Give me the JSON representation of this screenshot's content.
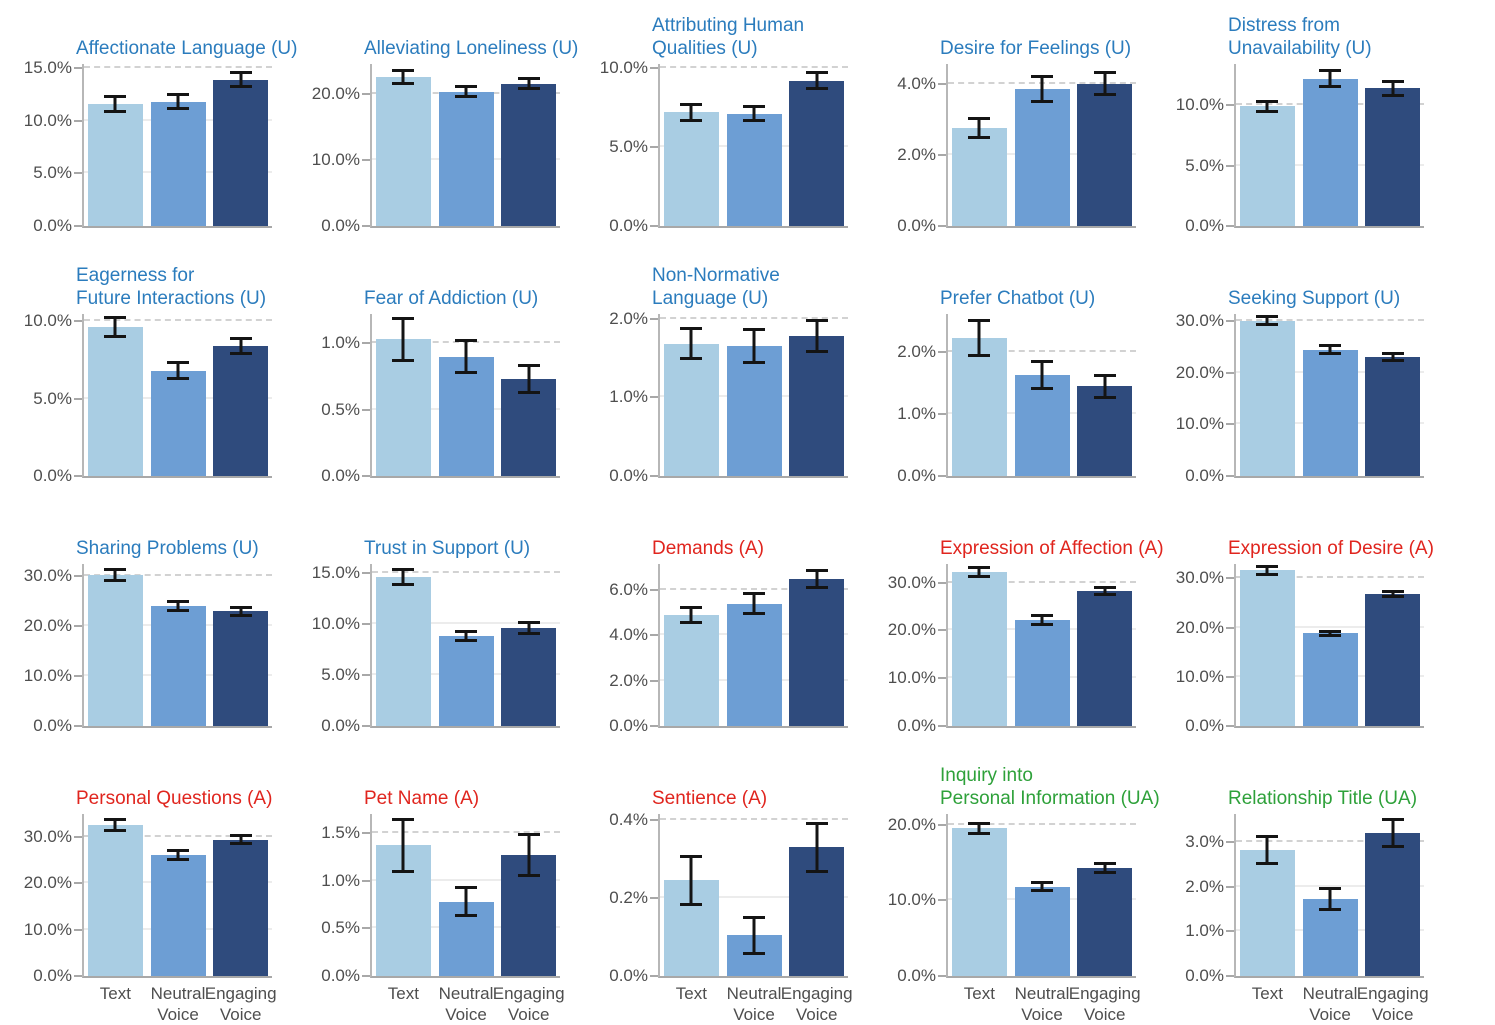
{
  "palette": {
    "bar_text": "#a9cde3",
    "bar_neutral_voice": "#6d9ed4",
    "bar_engaging_voice": "#2f4b7d",
    "error_bar": "#141414",
    "axis": "#a8a8a8",
    "gridline": "#ececec",
    "dashed_gridline": "#d2d2d2",
    "tick_text": "#4e4e4e"
  },
  "category_colors": {
    "U": "#2b7cbd",
    "A": "#e0251e",
    "UA": "#2ea13a"
  },
  "categories": [
    "Text",
    "Neutral Voice",
    "Engaging Voice"
  ],
  "x_tick_labels": [
    [
      "Text"
    ],
    [
      "Neutral",
      "Voice"
    ],
    [
      "Engaging",
      "Voice"
    ]
  ],
  "chart_data": [
    {
      "type": "bar",
      "title": "Affectionate Language (U)",
      "title_lines": [
        "Affectionate Language (U)"
      ],
      "category_code": "U",
      "categories": [
        "Text",
        "Neutral Voice",
        "Engaging Voice"
      ],
      "values": [
        11.6,
        11.8,
        13.9
      ],
      "errors": [
        0.9,
        0.8,
        0.8
      ],
      "ylim": [
        0,
        15.4
      ],
      "yticks": [
        {
          "value": 0,
          "label": "0.0%"
        },
        {
          "value": 5,
          "label": "5.0%"
        },
        {
          "value": 10,
          "label": "10.0%"
        },
        {
          "value": 15,
          "label": "15.0%"
        }
      ]
    },
    {
      "type": "bar",
      "title": "Alleviating Loneliness (U)",
      "title_lines": [
        "Alleviating Loneliness (U)"
      ],
      "category_code": "U",
      "categories": [
        "Text",
        "Neutral Voice",
        "Engaging Voice"
      ],
      "values": [
        22.6,
        20.4,
        21.6
      ],
      "errors": [
        1.2,
        1.0,
        1.0
      ],
      "ylim": [
        0,
        24.6
      ],
      "yticks": [
        {
          "value": 0,
          "label": "0.0%"
        },
        {
          "value": 10,
          "label": "10.0%"
        },
        {
          "value": 20,
          "label": "20.0%"
        }
      ]
    },
    {
      "type": "bar",
      "title": "Attributing Human Qualities (U)",
      "title_lines": [
        "Attributing Human",
        "Qualities (U)"
      ],
      "category_code": "U",
      "categories": [
        "Text",
        "Neutral Voice",
        "Engaging Voice"
      ],
      "values": [
        7.2,
        7.1,
        9.2
      ],
      "errors": [
        0.6,
        0.55,
        0.6
      ],
      "ylim": [
        0,
        10.25
      ],
      "yticks": [
        {
          "value": 0,
          "label": "0.0%"
        },
        {
          "value": 5,
          "label": "5.0%"
        },
        {
          "value": 10,
          "label": "10.0%"
        }
      ]
    },
    {
      "type": "bar",
      "title": "Desire for Feelings (U)",
      "title_lines": [
        "Desire for Feelings (U)"
      ],
      "category_code": "U",
      "categories": [
        "Text",
        "Neutral Voice",
        "Engaging Voice"
      ],
      "values": [
        2.75,
        3.85,
        4.0
      ],
      "errors": [
        0.3,
        0.4,
        0.35
      ],
      "ylim": [
        0,
        4.55
      ],
      "yticks": [
        {
          "value": 0,
          "label": "0.0%"
        },
        {
          "value": 2,
          "label": "2.0%"
        },
        {
          "value": 4,
          "label": "4.0%"
        }
      ]
    },
    {
      "type": "bar",
      "title": "Distress from Unavailability (U)",
      "title_lines": [
        "Distress from",
        "Unavailability (U)"
      ],
      "category_code": "U",
      "categories": [
        "Text",
        "Neutral Voice",
        "Engaging Voice"
      ],
      "values": [
        9.9,
        12.2,
        11.4
      ],
      "errors": [
        0.55,
        0.8,
        0.7
      ],
      "ylim": [
        0,
        13.4
      ],
      "yticks": [
        {
          "value": 0,
          "label": "0.0%"
        },
        {
          "value": 5,
          "label": "5.0%"
        },
        {
          "value": 10,
          "label": "10.0%"
        }
      ]
    },
    {
      "type": "bar",
      "title": "Eagerness for Future Interactions (U)",
      "title_lines": [
        "Eagerness for",
        "Future Interactions (U)"
      ],
      "category_code": "U",
      "categories": [
        "Text",
        "Neutral Voice",
        "Engaging Voice"
      ],
      "values": [
        9.6,
        6.8,
        8.4
      ],
      "errors": [
        0.7,
        0.6,
        0.6
      ],
      "ylim": [
        0,
        10.45
      ],
      "yticks": [
        {
          "value": 0,
          "label": "0.0%"
        },
        {
          "value": 5,
          "label": "5.0%"
        },
        {
          "value": 10,
          "label": "10.0%"
        }
      ]
    },
    {
      "type": "bar",
      "title": "Fear of Addiction (U)",
      "title_lines": [
        "Fear of Addiction (U)"
      ],
      "category_code": "U",
      "categories": [
        "Text",
        "Neutral Voice",
        "Engaging Voice"
      ],
      "values": [
        1.03,
        0.9,
        0.73
      ],
      "errors": [
        0.17,
        0.13,
        0.11
      ],
      "ylim": [
        0,
        1.22
      ],
      "yticks": [
        {
          "value": 0,
          "label": "0.0%"
        },
        {
          "value": 0.5,
          "label": "0.5%"
        },
        {
          "value": 1,
          "label": "1.0%"
        }
      ]
    },
    {
      "type": "bar",
      "title": "Non-Normative Language (U)",
      "title_lines": [
        "Non-Normative",
        "Language (U)"
      ],
      "category_code": "U",
      "categories": [
        "Text",
        "Neutral Voice",
        "Engaging Voice"
      ],
      "values": [
        1.68,
        1.65,
        1.78
      ],
      "errors": [
        0.21,
        0.23,
        0.22
      ],
      "ylim": [
        0,
        2.06
      ],
      "yticks": [
        {
          "value": 0,
          "label": "0.0%"
        },
        {
          "value": 1,
          "label": "1.0%"
        },
        {
          "value": 2,
          "label": "2.0%"
        }
      ]
    },
    {
      "type": "bar",
      "title": "Prefer Chatbot (U)",
      "title_lines": [
        "Prefer Chatbot (U)"
      ],
      "category_code": "U",
      "categories": [
        "Text",
        "Neutral Voice",
        "Engaging Voice"
      ],
      "values": [
        2.23,
        1.63,
        1.45
      ],
      "errors": [
        0.31,
        0.24,
        0.2
      ],
      "ylim": [
        0,
        2.62
      ],
      "yticks": [
        {
          "value": 0,
          "label": "0.0%"
        },
        {
          "value": 1,
          "label": "1.0%"
        },
        {
          "value": 2,
          "label": "2.0%"
        }
      ]
    },
    {
      "type": "bar",
      "title": "Seeking Support (U)",
      "title_lines": [
        "Seeking Support (U)"
      ],
      "category_code": "U",
      "categories": [
        "Text",
        "Neutral Voice",
        "Engaging Voice"
      ],
      "values": [
        30.0,
        24.4,
        23.0
      ],
      "errors": [
        1.1,
        1.1,
        1.0
      ],
      "ylim": [
        0,
        31.3
      ],
      "yticks": [
        {
          "value": 0,
          "label": "0.0%"
        },
        {
          "value": 10,
          "label": "10.0%"
        },
        {
          "value": 20,
          "label": "20.0%"
        },
        {
          "value": 30,
          "label": "30.0%"
        }
      ]
    },
    {
      "type": "bar",
      "title": "Sharing Problems (U)",
      "title_lines": [
        "Sharing Problems (U)"
      ],
      "category_code": "U",
      "categories": [
        "Text",
        "Neutral Voice",
        "Engaging Voice"
      ],
      "values": [
        30.2,
        24.0,
        22.9
      ],
      "errors": [
        1.4,
        1.2,
        1.1
      ],
      "ylim": [
        0,
        32.3
      ],
      "yticks": [
        {
          "value": 0,
          "label": "0.0%"
        },
        {
          "value": 10,
          "label": "10.0%"
        },
        {
          "value": 20,
          "label": "20.0%"
        },
        {
          "value": 30,
          "label": "30.0%"
        }
      ]
    },
    {
      "type": "bar",
      "title": "Trust in Support (U)",
      "title_lines": [
        "Trust in Support (U)"
      ],
      "category_code": "U",
      "categories": [
        "Text",
        "Neutral Voice",
        "Engaging Voice"
      ],
      "values": [
        14.6,
        8.8,
        9.6
      ],
      "errors": [
        0.9,
        0.6,
        0.7
      ],
      "ylim": [
        0,
        15.9
      ],
      "yticks": [
        {
          "value": 0,
          "label": "0.0%"
        },
        {
          "value": 5,
          "label": "5.0%"
        },
        {
          "value": 10,
          "label": "10.0%"
        },
        {
          "value": 15,
          "label": "15.0%"
        }
      ]
    },
    {
      "type": "bar",
      "title": "Demands (A)",
      "title_lines": [
        "Demands (A)"
      ],
      "category_code": "A",
      "categories": [
        "Text",
        "Neutral Voice",
        "Engaging Voice"
      ],
      "values": [
        4.9,
        5.4,
        6.5
      ],
      "errors": [
        0.4,
        0.5,
        0.45
      ],
      "ylim": [
        0,
        7.15
      ],
      "yticks": [
        {
          "value": 0,
          "label": "0.0%"
        },
        {
          "value": 2,
          "label": "2.0%"
        },
        {
          "value": 4,
          "label": "4.0%"
        },
        {
          "value": 6,
          "label": "6.0%"
        }
      ]
    },
    {
      "type": "bar",
      "title": "Expression of Affection (A)",
      "title_lines": [
        "Expression of Affection (A)"
      ],
      "category_code": "A",
      "categories": [
        "Text",
        "Neutral Voice",
        "Engaging Voice"
      ],
      "values": [
        32.2,
        22.2,
        28.3
      ],
      "errors": [
        1.3,
        1.2,
        1.0
      ],
      "ylim": [
        0,
        33.9
      ],
      "yticks": [
        {
          "value": 0,
          "label": "0.0%"
        },
        {
          "value": 10,
          "label": "10.0%"
        },
        {
          "value": 20,
          "label": "20.0%"
        },
        {
          "value": 30,
          "label": "30.0%"
        }
      ]
    },
    {
      "type": "bar",
      "title": "Expression of Desire (A)",
      "title_lines": [
        "Expression of Desire (A)"
      ],
      "category_code": "A",
      "categories": [
        "Text",
        "Neutral Voice",
        "Engaging Voice"
      ],
      "values": [
        31.6,
        18.8,
        26.8
      ],
      "errors": [
        1.1,
        0.8,
        0.9
      ],
      "ylim": [
        0,
        32.9
      ],
      "yticks": [
        {
          "value": 0,
          "label": "0.0%"
        },
        {
          "value": 10,
          "label": "10.0%"
        },
        {
          "value": 20,
          "label": "20.0%"
        },
        {
          "value": 30,
          "label": "30.0%"
        }
      ]
    },
    {
      "type": "bar",
      "title": "Personal Questions (A)",
      "title_lines": [
        "Personal Questions (A)"
      ],
      "category_code": "A",
      "categories": [
        "Text",
        "Neutral Voice",
        "Engaging Voice"
      ],
      "values": [
        32.5,
        26.0,
        29.4
      ],
      "errors": [
        1.5,
        1.3,
        1.2
      ],
      "ylim": [
        0,
        34.9
      ],
      "yticks": [
        {
          "value": 0,
          "label": "0.0%"
        },
        {
          "value": 10,
          "label": "10.0%"
        },
        {
          "value": 20,
          "label": "20.0%"
        },
        {
          "value": 30,
          "label": "30.0%"
        }
      ]
    },
    {
      "type": "bar",
      "title": "Pet Name (A)",
      "title_lines": [
        "Pet Name (A)"
      ],
      "category_code": "A",
      "categories": [
        "Text",
        "Neutral Voice",
        "Engaging Voice"
      ],
      "values": [
        1.37,
        0.78,
        1.27
      ],
      "errors": [
        0.29,
        0.16,
        0.23
      ],
      "ylim": [
        0,
        1.7
      ],
      "yticks": [
        {
          "value": 0,
          "label": "0.0%"
        },
        {
          "value": 0.5,
          "label": "0.5%"
        },
        {
          "value": 1,
          "label": "1.0%"
        },
        {
          "value": 1.5,
          "label": "1.5%"
        }
      ]
    },
    {
      "type": "bar",
      "title": "Sentience (A)",
      "title_lines": [
        "Sentience (A)"
      ],
      "category_code": "A",
      "categories": [
        "Text",
        "Neutral Voice",
        "Engaging Voice"
      ],
      "values": [
        0.245,
        0.105,
        0.33
      ],
      "errors": [
        0.065,
        0.05,
        0.065
      ],
      "ylim": [
        0,
        0.415
      ],
      "yticks": [
        {
          "value": 0,
          "label": "0.0%"
        },
        {
          "value": 0.2,
          "label": "0.2%"
        },
        {
          "value": 0.4,
          "label": "0.4%"
        }
      ]
    },
    {
      "type": "bar",
      "title": "Inquiry into Personal Information (UA)",
      "title_lines": [
        "Inquiry into",
        "Personal Information (UA)"
      ],
      "category_code": "UA",
      "categories": [
        "Text",
        "Neutral Voice",
        "Engaging Voice"
      ],
      "values": [
        19.5,
        11.8,
        14.3
      ],
      "errors": [
        0.9,
        0.7,
        0.8
      ],
      "ylim": [
        0,
        21.4
      ],
      "yticks": [
        {
          "value": 0,
          "label": "0.0%"
        },
        {
          "value": 10,
          "label": "10.0%"
        },
        {
          "value": 20,
          "label": "20.0%"
        }
      ]
    },
    {
      "type": "bar",
      "title": "Relationship Title (UA)",
      "title_lines": [
        "Relationship Title (UA)"
      ],
      "category_code": "UA",
      "categories": [
        "Text",
        "Neutral Voice",
        "Engaging Voice"
      ],
      "values": [
        2.82,
        1.73,
        3.2
      ],
      "errors": [
        0.33,
        0.27,
        0.33
      ],
      "ylim": [
        0,
        3.62
      ],
      "yticks": [
        {
          "value": 0,
          "label": "0.0%"
        },
        {
          "value": 1,
          "label": "1.0%"
        },
        {
          "value": 2,
          "label": "2.0%"
        },
        {
          "value": 3,
          "label": "3.0%"
        }
      ]
    }
  ]
}
